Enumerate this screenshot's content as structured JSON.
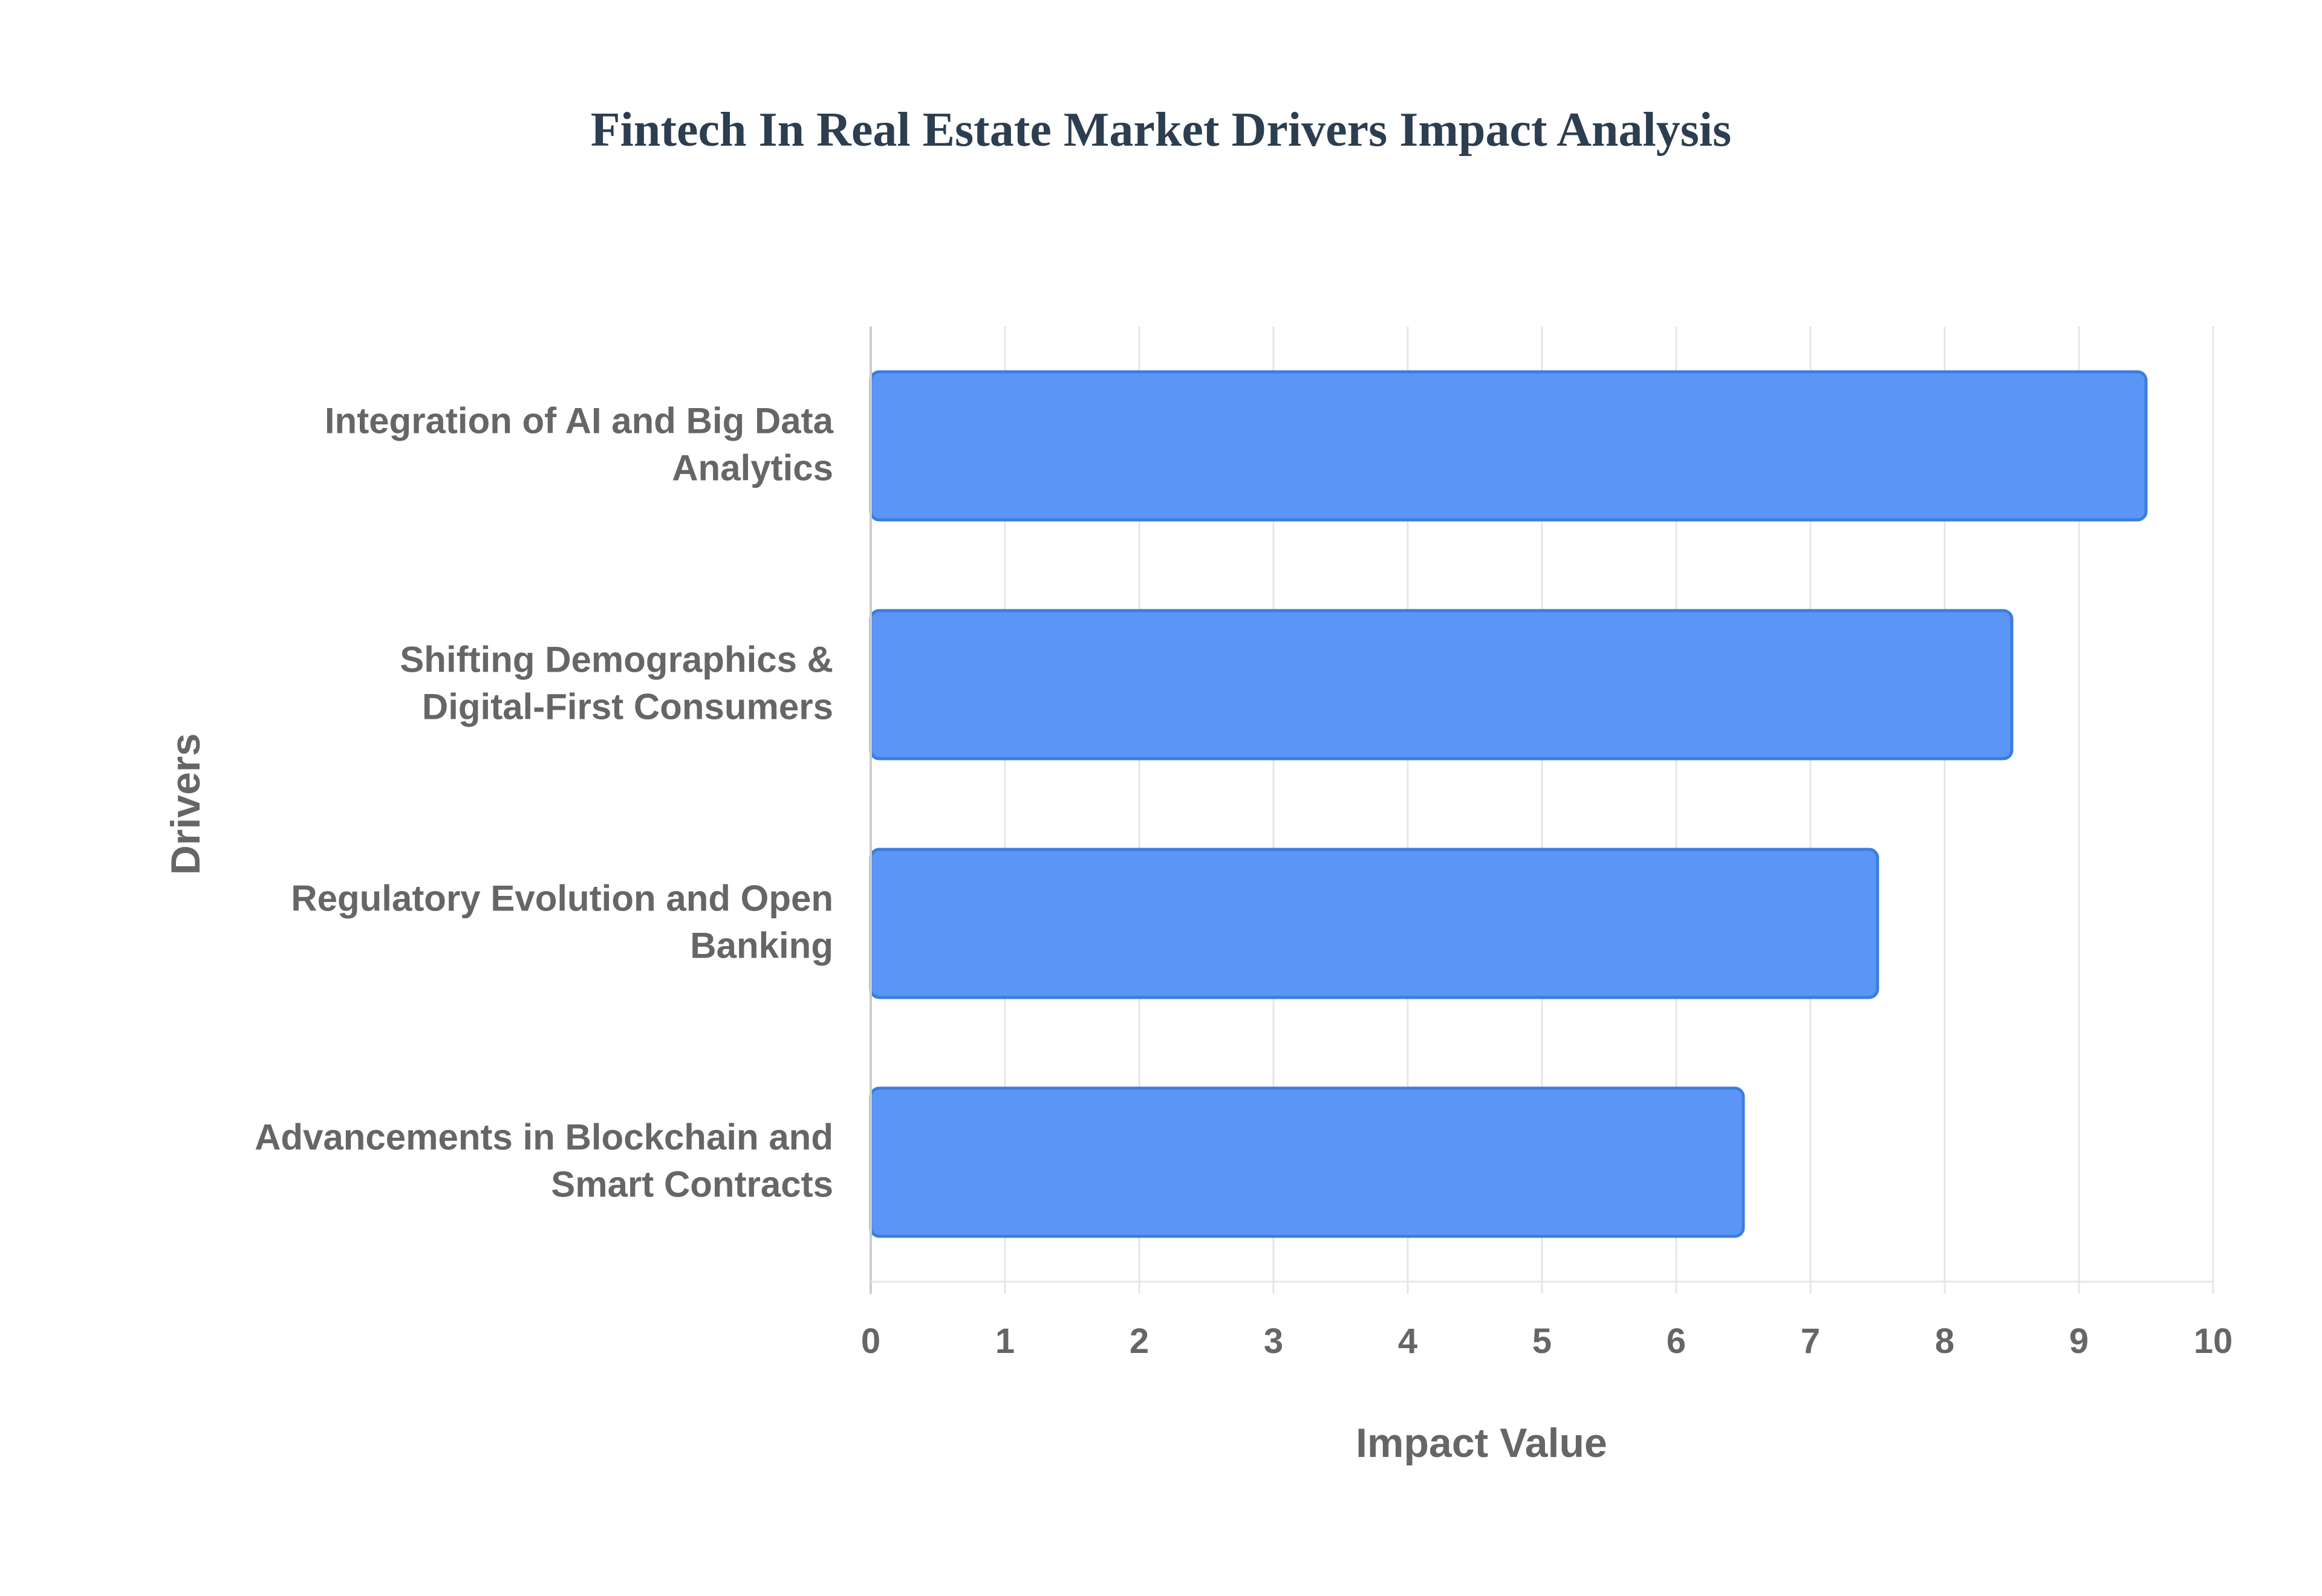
{
  "chart_data": {
    "type": "bar",
    "orientation": "horizontal",
    "title": "Fintech In Real Estate Market Drivers Impact Analysis",
    "xlabel": "Impact Value",
    "ylabel": "Drivers",
    "categories": [
      [
        "Integration of AI and Big Data",
        "Analytics"
      ],
      [
        "Shifting Demographics &",
        "Digital-First Consumers"
      ],
      [
        "Regulatory Evolution and Open",
        "Banking"
      ],
      [
        "Advancements in Blockchain and",
        "Smart Contracts"
      ]
    ],
    "values": [
      9.5,
      8.5,
      7.5,
      6.5
    ],
    "xlim": [
      0,
      10
    ],
    "xticks": [
      "0",
      "1",
      "2",
      "3",
      "4",
      "5",
      "6",
      "7",
      "8",
      "9",
      "10"
    ],
    "grid": true,
    "legend": "none",
    "colors": {
      "bar_fill": "#5b95f5",
      "bar_border": "#3b7de0",
      "grid": "#e6e6e6",
      "axis": "#cccccc",
      "title": "#2c3e50",
      "text": "#666666"
    }
  }
}
